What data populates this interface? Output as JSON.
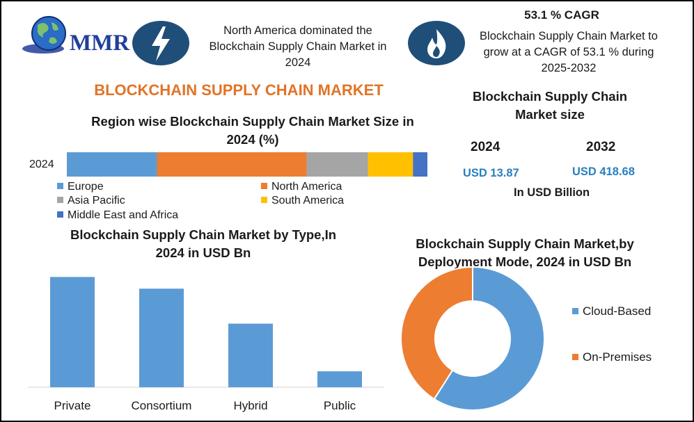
{
  "logo": {
    "text": "MMR"
  },
  "header": {
    "left_note": "North America dominated the Blockchain Supply Chain Market in 2024",
    "cagr_title": "53.1 % CAGR",
    "cagr_note": "Blockchain Supply Chain Market to grow at a CAGR of 53.1 % during 2025-2032",
    "lightning_icon": "lightning-icon",
    "flame_icon": "flame-icon"
  },
  "title": "BLOCKCHAIN SUPPLY CHAIN MARKET",
  "market_size": {
    "title": "Blockchain Supply Chain Market size",
    "year1": "2024",
    "year2": "2032",
    "value1": "USD 13.87",
    "value2": "USD 418.68",
    "unit": "In USD Billion"
  },
  "colors": {
    "europe": "#5b9bd5",
    "north_america": "#ed7d31",
    "asia_pacific": "#a5a5a5",
    "south_america": "#ffc000",
    "mea": "#4472c4",
    "bar": "#5b9bd5",
    "cloud": "#5b9bd5",
    "onprem": "#ed7d31",
    "title_orange": "#e07427",
    "icon_blue": "#1f4e79"
  },
  "chart_data": [
    {
      "type": "bar",
      "orientation": "horizontal-stacked",
      "title": "Region wise Blockchain Supply Chain Market Size in 2024 (%)",
      "categories": [
        "2024"
      ],
      "series": [
        {
          "name": "Europe",
          "values": [
            25
          ]
        },
        {
          "name": "North America",
          "values": [
            41.5
          ]
        },
        {
          "name": "Asia Pacific",
          "values": [
            17
          ]
        },
        {
          "name": "South America",
          "values": [
            12.5
          ]
        },
        {
          "name": "Middle East and Africa",
          "values": [
            4
          ]
        }
      ],
      "legend_position": "bottom",
      "grid": false
    },
    {
      "type": "bar",
      "title": "Blockchain Supply Chain Market by Type,In 2024 in USD Bn",
      "categories": [
        "Private",
        "Consortium",
        "Hybrid",
        "Public"
      ],
      "values": [
        5.2,
        4.65,
        3.0,
        0.75
      ],
      "ylim": [
        0,
        6
      ],
      "grid": false,
      "xlabel": "",
      "ylabel": ""
    },
    {
      "type": "pie",
      "variant": "donut",
      "title": "Blockchain Supply Chain Market,by Deployment Mode, 2024 in USD Bn",
      "categories": [
        "Cloud-Based",
        "On-Premises"
      ],
      "values": [
        59,
        41
      ],
      "legend_position": "right"
    }
  ]
}
